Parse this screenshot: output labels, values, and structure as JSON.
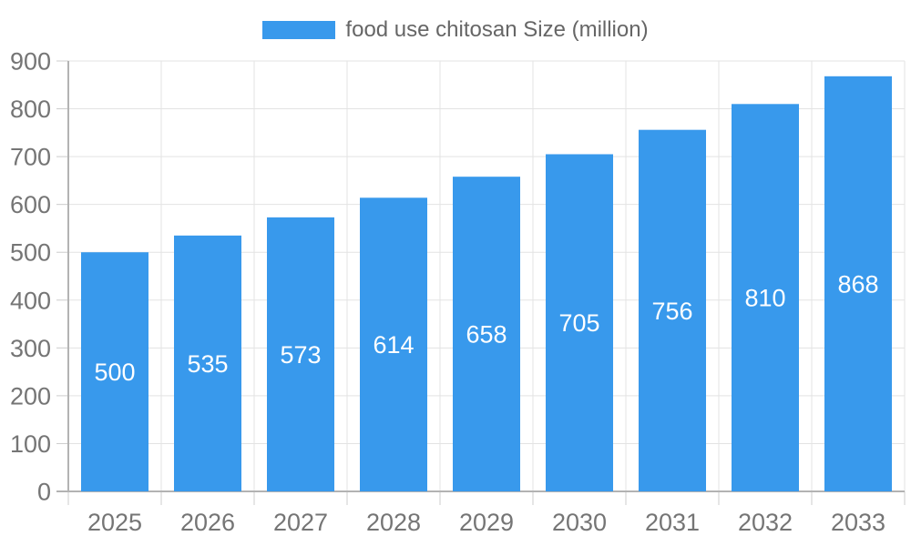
{
  "legend": {
    "label": "food use chitosan Size (million)"
  },
  "chart_data": {
    "type": "bar",
    "title": "food use chitosan Size (million)",
    "categories": [
      "2025",
      "2026",
      "2027",
      "2028",
      "2029",
      "2030",
      "2031",
      "2032",
      "2033"
    ],
    "series": [
      {
        "name": "food use chitosan Size (million)",
        "values": [
          500,
          535,
          573,
          614,
          658,
          705,
          756,
          810,
          868
        ]
      }
    ],
    "value_labels": [
      "500",
      "535",
      "573",
      "614",
      "658",
      "705",
      "756",
      "810",
      "868"
    ],
    "xlabel": "",
    "ylabel": "",
    "ylim": [
      0,
      900
    ],
    "y_tick_step": 100,
    "y_tick_labels": [
      "0",
      "100",
      "200",
      "300",
      "400",
      "500",
      "600",
      "700",
      "800",
      "900"
    ],
    "grid": true,
    "legend_position": "top-center",
    "value_label_position": "inside-middle"
  },
  "colors": {
    "background": "#ffffff",
    "bar": "#3899ec",
    "bar_value_text": "#ffffff",
    "axis_line": "#b3b3b3",
    "grid_line": "#e3e3e3",
    "tick_line": "#cccccc",
    "axis_label_text": "#757575",
    "legend_text": "#666666"
  }
}
